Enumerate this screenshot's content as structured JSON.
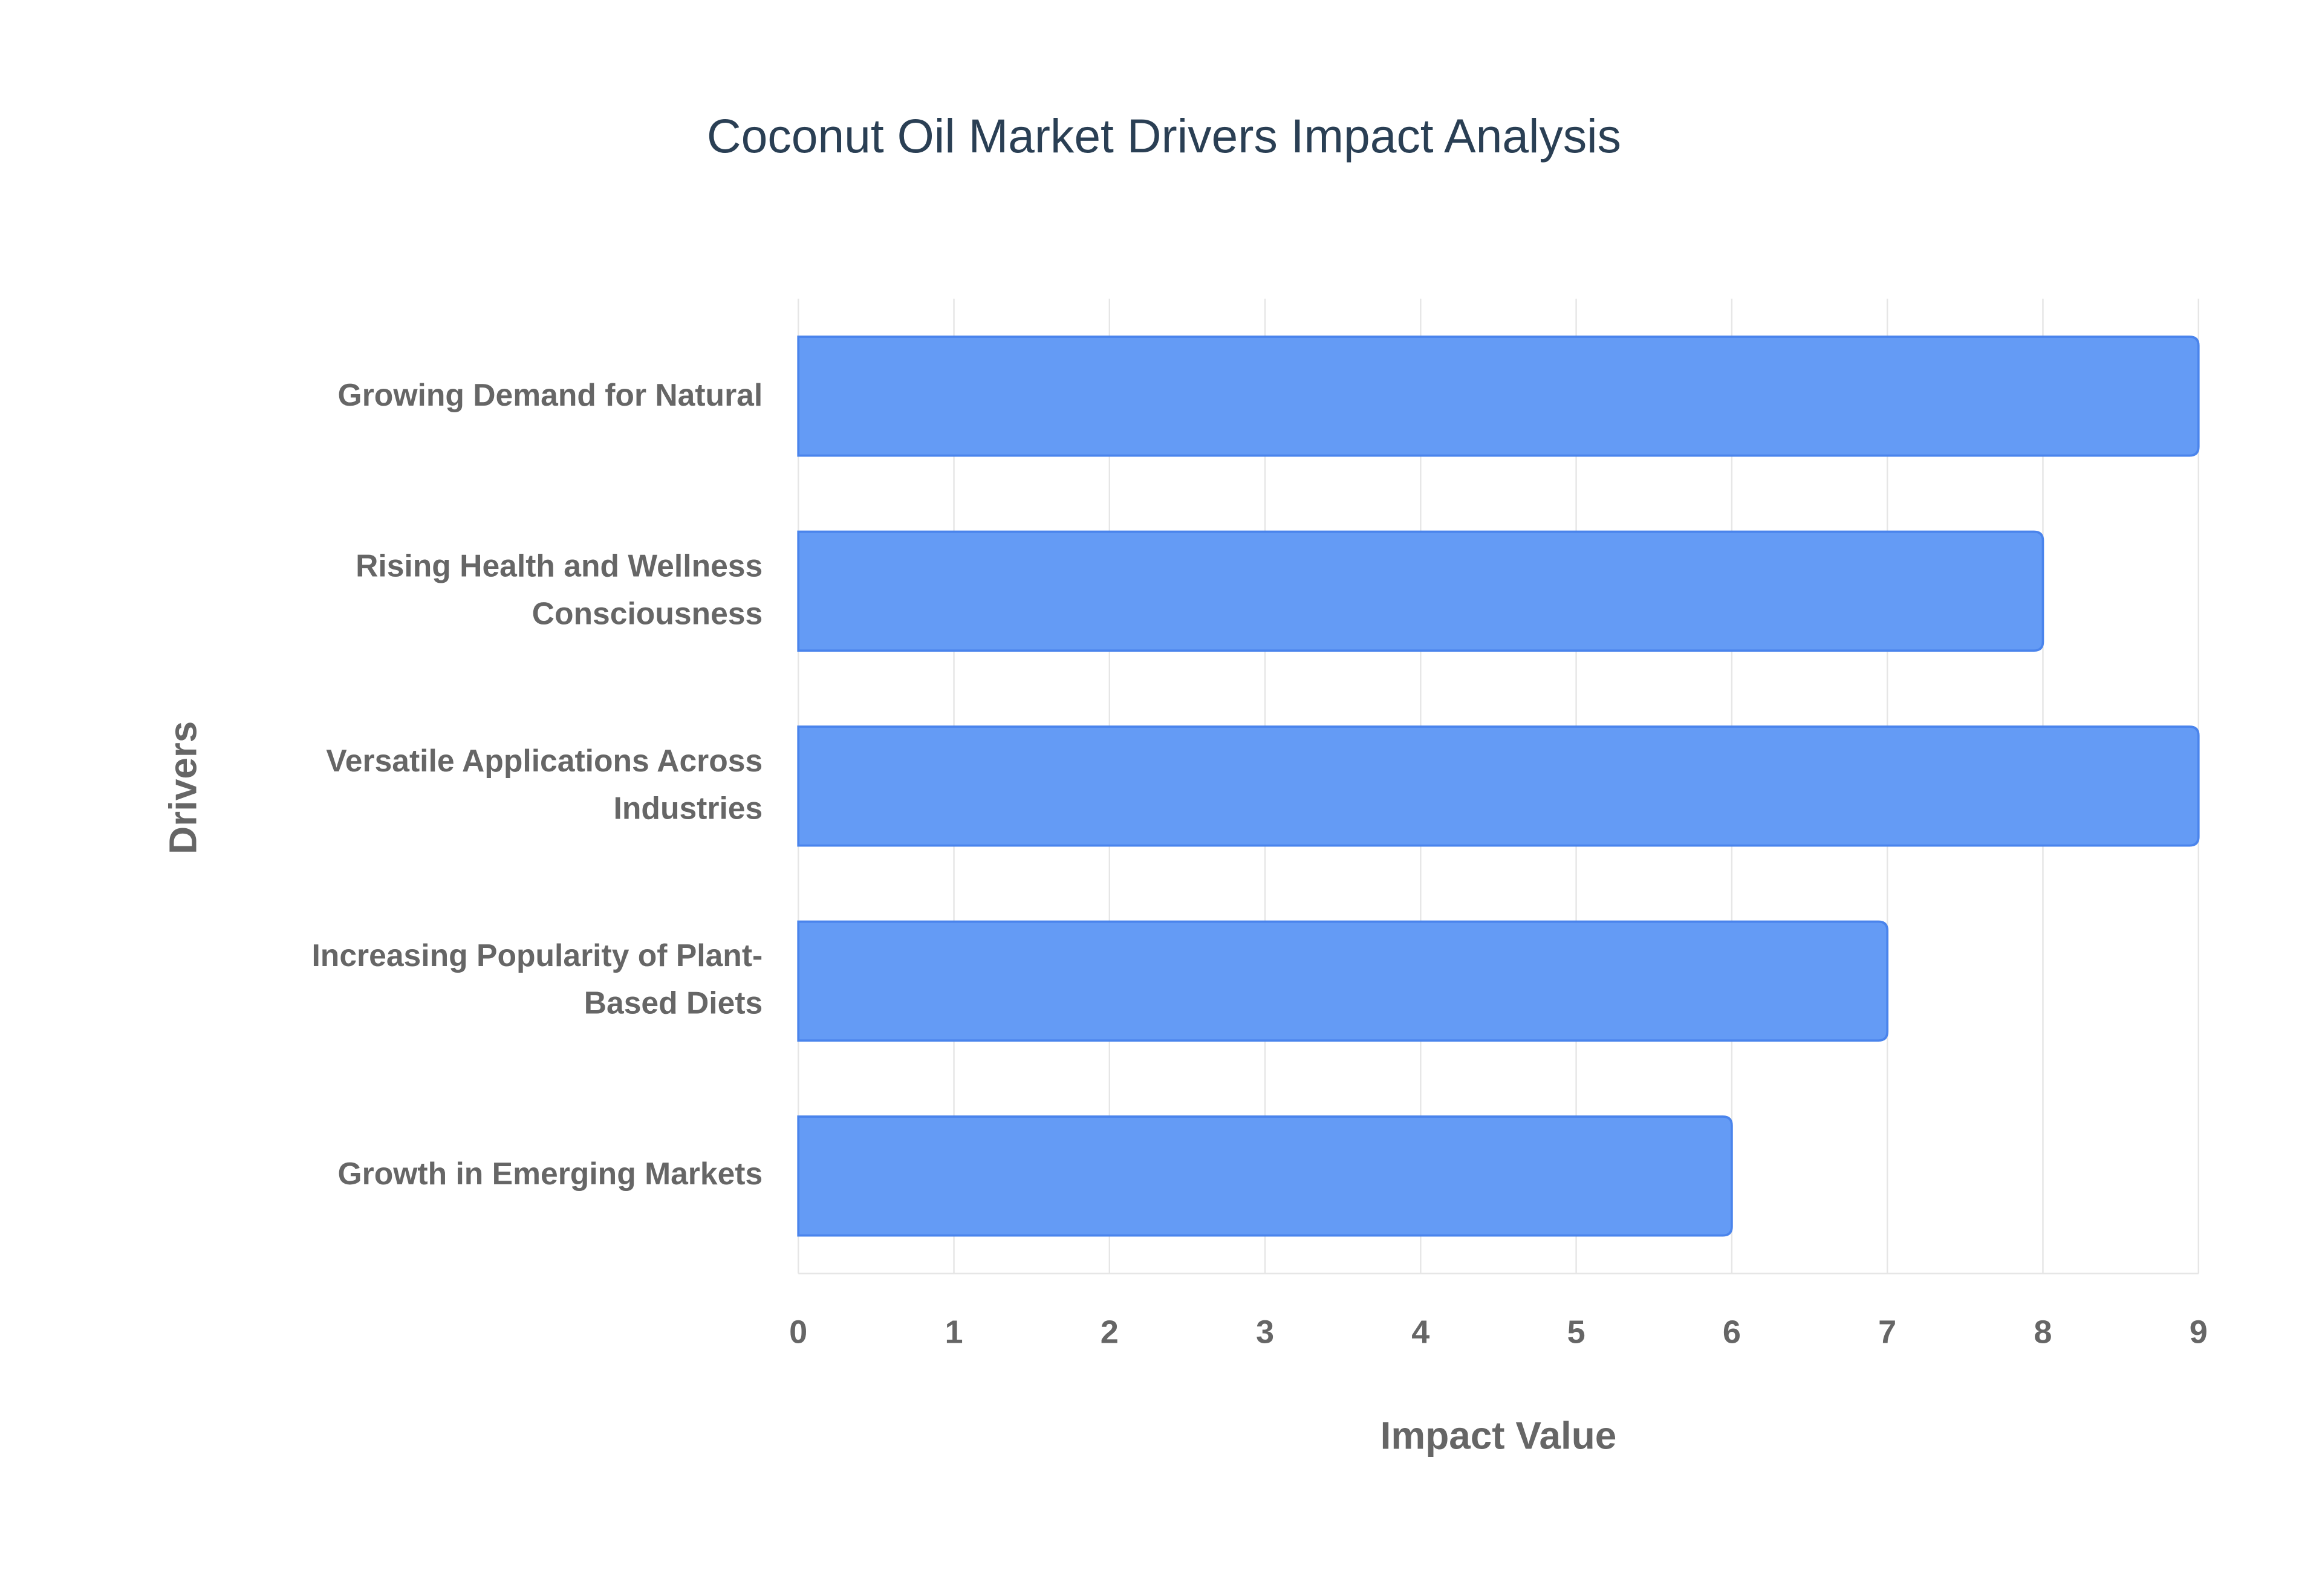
{
  "chart_data": {
    "type": "bar",
    "orientation": "horizontal",
    "title": "Coconut Oil Market Drivers Impact Analysis",
    "x_label": "Impact Value",
    "y_label": "Drivers",
    "categories": [
      "Growing Demand for Natural",
      "Rising Health and Wellness Consciousness",
      "Versatile Applications Across Industries",
      "Increasing Popularity of Plant-Based Diets",
      "Growth in Emerging Markets"
    ],
    "values": [
      9,
      8,
      9,
      7,
      6
    ],
    "color": "#6199f5",
    "xlim": [
      0,
      9
    ],
    "xticks": [
      0,
      1,
      2,
      3,
      4,
      5,
      6,
      7,
      8,
      9
    ],
    "grid": true
  }
}
